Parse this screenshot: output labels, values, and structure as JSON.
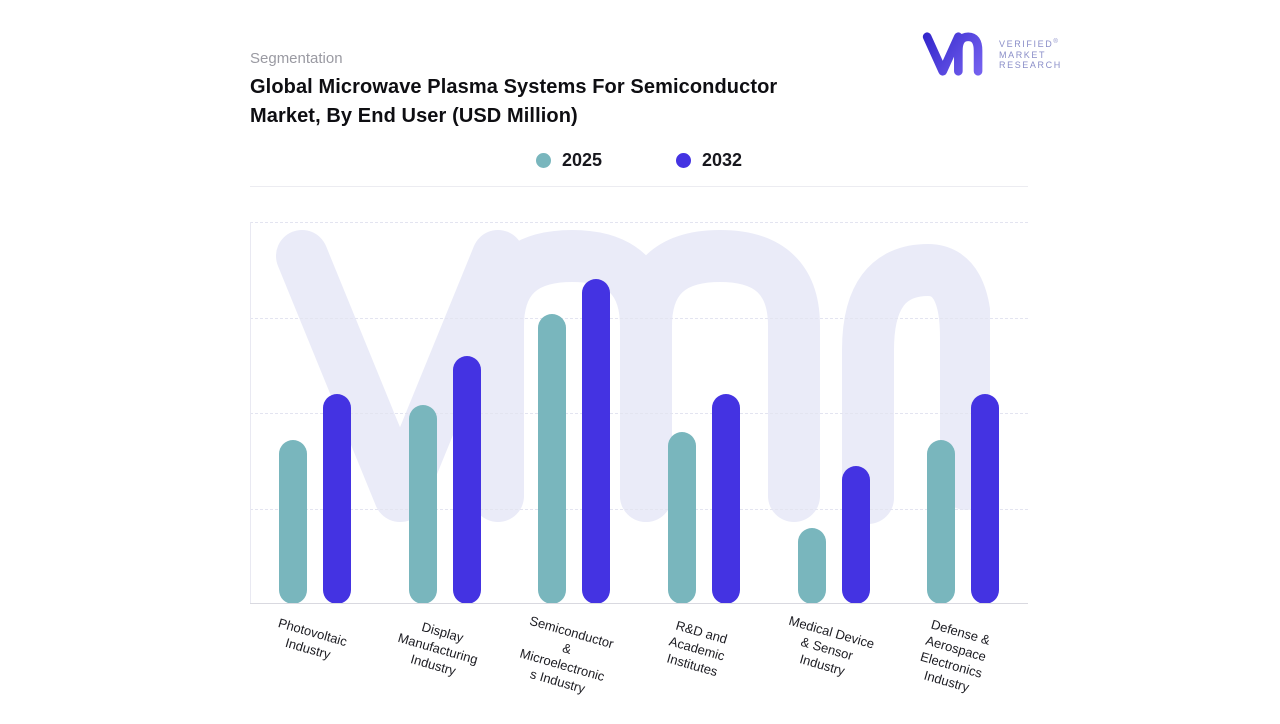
{
  "header": {
    "eyebrow": "Segmentation",
    "title_line1": "Global Microwave Plasma Systems For Semiconductor",
    "title_line2": "Market, By End User (USD Million)"
  },
  "logo": {
    "line1": "VERIFIED",
    "line2": "MARKET",
    "line3": "RESEARCH",
    "registered": "®",
    "mark_color_start": "#2f23c9",
    "mark_color_end": "#7a66f2",
    "text_color": "#8a8ec8"
  },
  "watermark": {
    "color": "#eaebf8"
  },
  "chart_data": {
    "type": "bar",
    "title": "Global Microwave Plasma Systems For Semiconductor Market, By End User (USD Million)",
    "categories": [
      "Photovoltaic Industry",
      "Display Manufacturing Industry",
      "Semiconductor & Microelectronics Industry",
      "R&D and Academic Institutes",
      "Medical Device & Sensor Industry",
      "Defense & Aerospace Electronics Industry"
    ],
    "category_label_lines": [
      [
        "Photovoltaic",
        "Industry"
      ],
      [
        "Display",
        "Manufacturing",
        "Industry"
      ],
      [
        "Semiconductor",
        "&",
        "Microelectronic",
        "s Industry"
      ],
      [
        "R&D and",
        "Academic",
        "Institutes"
      ],
      [
        "Medical Device",
        "& Sensor",
        "Industry"
      ],
      [
        "Defense &",
        "Aerospace",
        "Electronics",
        "Industry"
      ]
    ],
    "series": [
      {
        "name": "2025",
        "color": "#79b6bd",
        "values": [
          43,
          52,
          76,
          45,
          20,
          43
        ]
      },
      {
        "name": "2032",
        "color": "#4433e2",
        "values": [
          55,
          65,
          85,
          55,
          36,
          55
        ]
      }
    ],
    "ylim": [
      0,
      100
    ],
    "y_axis_labels_visible": false,
    "grid": "dashed-horizontal",
    "legend_position": "top-center",
    "note": "No numeric y-axis tick labels are shown in the figure; values are estimated as percent of plot height"
  }
}
